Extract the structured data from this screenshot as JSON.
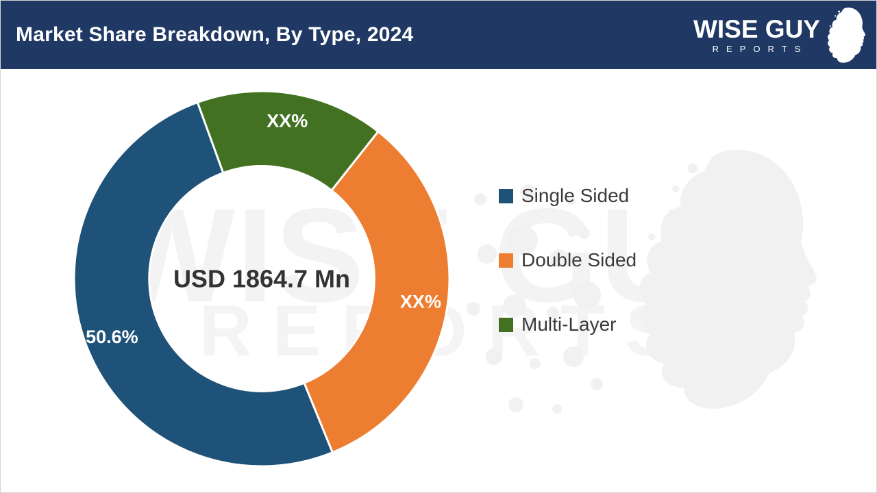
{
  "header": {
    "title": "Market Share Breakdown, By Type, 2024",
    "bg_color": "#1F3864",
    "logo": {
      "wordmark": "WISE GUY",
      "subtext": "REPORTS"
    }
  },
  "watermark": {
    "wordmark": "WISE GUY",
    "subtext": "REPORTS"
  },
  "chart_data": {
    "type": "pie",
    "subtype": "donut",
    "title": "Market Share Breakdown, By Type, 2024",
    "center_label": "USD 1864.7 Mn",
    "series": [
      {
        "name": "Single Sided",
        "value": 50.6,
        "display_label": "50.6%",
        "color": "#1F5278"
      },
      {
        "name": "Double Sided",
        "value": 33.2,
        "display_label": "XX%",
        "color": "#ED7D31"
      },
      {
        "name": "Multi-Layer",
        "value": 16.2,
        "display_label": "XX%",
        "color": "#437122"
      }
    ],
    "start_angle_deg": 110,
    "direction": "counterclockwise",
    "inner_radius_ratio": 0.6,
    "label_radius_ratio": 0.855,
    "legend_position": "right",
    "segment_label_color": "#ffffff",
    "center_label_color": "#333333",
    "legend_text_color": "#3a3a3a",
    "segment_gap_color": "#ffffff"
  }
}
